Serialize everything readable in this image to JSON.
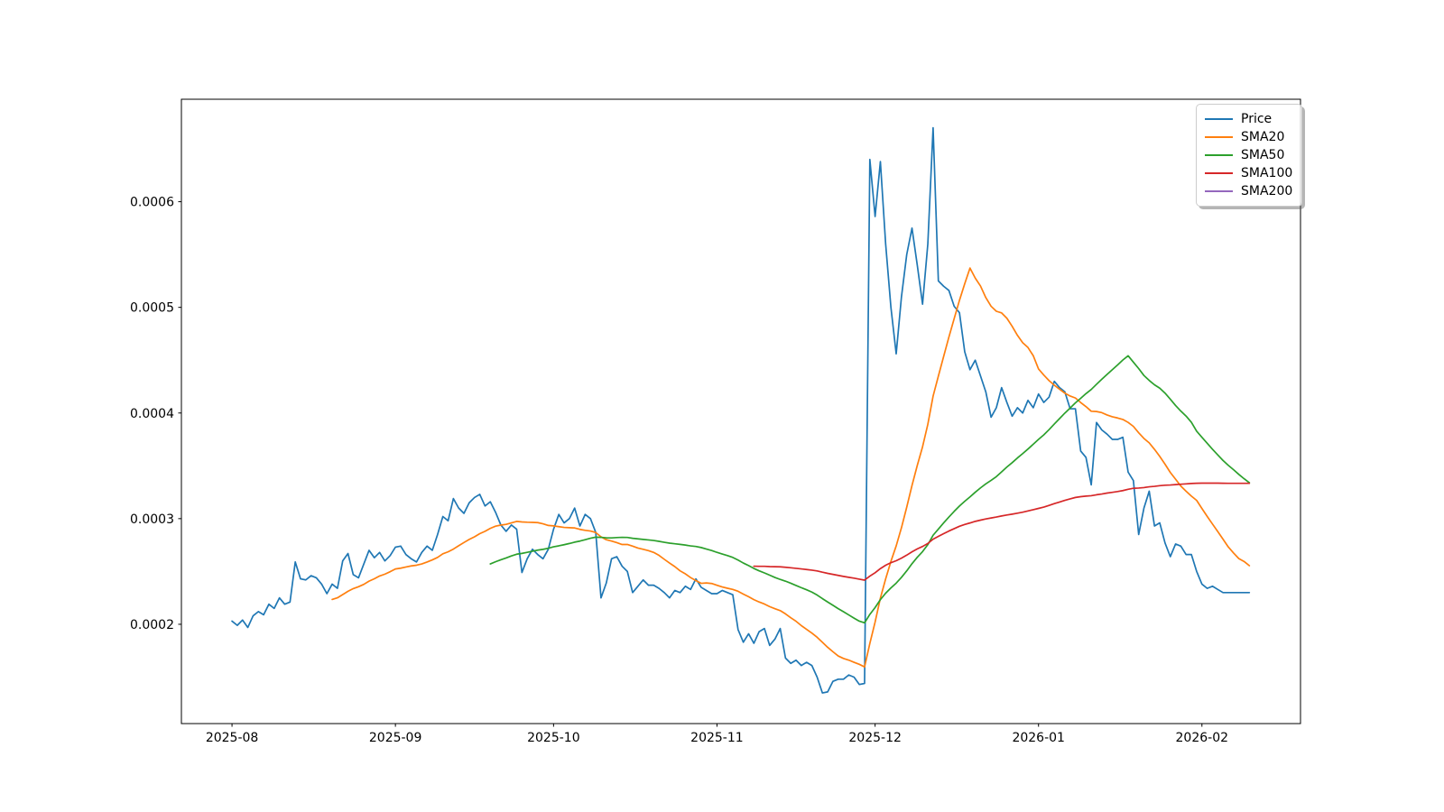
{
  "chart_data": {
    "type": "line",
    "title": "",
    "xlabel": "",
    "ylabel": "",
    "grid": false,
    "legend_position": "upper right",
    "background_color": "#ffffff",
    "axes_edge_color": "#000000",
    "start_date": "2025-08-01",
    "end_date": "2026-02-10",
    "frequency": "daily",
    "ylim": [
      0.000106,
      0.000697
    ],
    "xlim_days": [
      -9.6,
      202.7
    ],
    "y_ticks": [
      {
        "value": 0.0002,
        "label": "0.0002"
      },
      {
        "value": 0.0003,
        "label": "0.0003"
      },
      {
        "value": 0.0004,
        "label": "0.0004"
      },
      {
        "value": 0.0005,
        "label": "0.0005"
      },
      {
        "value": 0.0006,
        "label": "0.0006"
      }
    ],
    "x_ticks": [
      {
        "day": 0,
        "label": "2025-08"
      },
      {
        "day": 31,
        "label": "2025-09"
      },
      {
        "day": 61,
        "label": "2025-10"
      },
      {
        "day": 92,
        "label": "2025-11"
      },
      {
        "day": 122,
        "label": "2025-12"
      },
      {
        "day": 153,
        "label": "2026-01"
      },
      {
        "day": 184,
        "label": "2026-02"
      }
    ],
    "series": [
      {
        "name": "Price",
        "color": "#1f77b4",
        "kind": "price"
      },
      {
        "name": "SMA20",
        "color": "#ff7f0e",
        "kind": "sma",
        "window": 20
      },
      {
        "name": "SMA50",
        "color": "#2ca02c",
        "kind": "sma",
        "window": 50
      },
      {
        "name": "SMA100",
        "color": "#d62728",
        "kind": "sma",
        "window": 100
      },
      {
        "name": "SMA200",
        "color": "#9467bd",
        "kind": "sma",
        "window": 200
      }
    ],
    "prices": [
      0.000203,
      0.000199,
      0.000204,
      0.000197,
      0.000208,
      0.000212,
      0.000209,
      0.000219,
      0.000215,
      0.000225,
      0.000219,
      0.000221,
      0.000259,
      0.000243,
      0.000242,
      0.000246,
      0.000244,
      0.000238,
      0.000229,
      0.000238,
      0.000234,
      0.00026,
      0.000267,
      0.000247,
      0.000244,
      0.000257,
      0.00027,
      0.000263,
      0.000268,
      0.00026,
      0.000265,
      0.000273,
      0.000274,
      0.000266,
      0.000262,
      0.000259,
      0.000268,
      0.000274,
      0.00027,
      0.000285,
      0.000302,
      0.000298,
      0.000319,
      0.00031,
      0.000305,
      0.000315,
      0.00032,
      0.000323,
      0.000312,
      0.000316,
      0.000306,
      0.000294,
      0.000288,
      0.000294,
      0.00029,
      0.000249,
      0.000262,
      0.000271,
      0.000266,
      0.000262,
      0.000271,
      0.00029,
      0.000304,
      0.000296,
      0.0003,
      0.00031,
      0.000293,
      0.000304,
      0.0003,
      0.000287,
      0.000225,
      0.000239,
      0.000262,
      0.000264,
      0.000255,
      0.00025,
      0.00023,
      0.000236,
      0.000242,
      0.000237,
      0.000237,
      0.000234,
      0.00023,
      0.000225,
      0.000232,
      0.00023,
      0.000236,
      0.000233,
      0.000243,
      0.000235,
      0.000232,
      0.000229,
      0.000229,
      0.000232,
      0.00023,
      0.000228,
      0.000195,
      0.000183,
      0.000191,
      0.000182,
      0.000193,
      0.000196,
      0.00018,
      0.000186,
      0.000196,
      0.000168,
      0.000163,
      0.000166,
      0.000161,
      0.000164,
      0.000161,
      0.00015,
      0.000135,
      0.000136,
      0.000146,
      0.000148,
      0.000148,
      0.000152,
      0.00015,
      0.000143,
      0.000144,
      0.00064,
      0.000586,
      0.000638,
      0.00056,
      0.0005,
      0.000456,
      0.00051,
      0.00055,
      0.000575,
      0.00054,
      0.000503,
      0.00056,
      0.00067,
      0.000525,
      0.00052,
      0.000516,
      0.000501,
      0.000495,
      0.000458,
      0.000441,
      0.00045,
      0.000435,
      0.00042,
      0.000396,
      0.000405,
      0.000424,
      0.00041,
      0.000397,
      0.000405,
      0.0004,
      0.000412,
      0.000405,
      0.000418,
      0.00041,
      0.000415,
      0.00043,
      0.000424,
      0.00042,
      0.000404,
      0.000404,
      0.000364,
      0.000358,
      0.000332,
      0.000391,
      0.000384,
      0.00038,
      0.000375,
      0.000375,
      0.000377,
      0.000344,
      0.000336,
      0.000285,
      0.00031,
      0.000326,
      0.000293,
      0.000296,
      0.000277,
      0.000264,
      0.000276,
      0.000274,
      0.000266,
      0.000266,
      0.00025,
      0.000238,
      0.000234,
      0.000236,
      0.000233,
      0.00023,
      0.00023,
      0.00023,
      0.00023,
      0.00023,
      0.00023
    ]
  }
}
